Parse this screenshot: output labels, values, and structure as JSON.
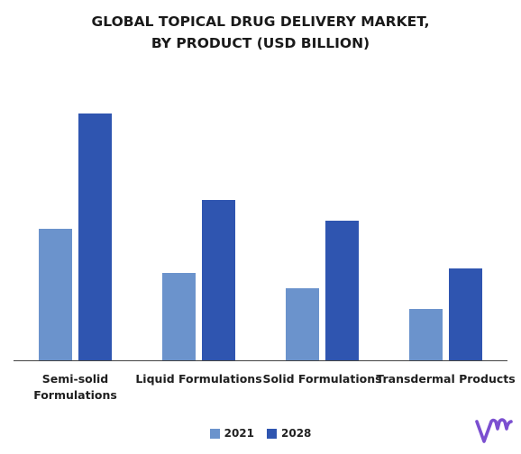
{
  "title_line1": "GLOBAL TOPICAL DRUG DELIVERY MARKET,",
  "title_line2": "BY PRODUCT (USD BILLION)",
  "colors": {
    "2021": "#6b93cc",
    "2028": "#2f55b0",
    "logo": "#7b4fd0",
    "axis": "#444444"
  },
  "logo_icon": "vmr-logo-icon",
  "chart_data": {
    "type": "bar",
    "title": "GLOBAL TOPICAL DRUG DELIVERY MARKET, BY PRODUCT (USD BILLION)",
    "categories": [
      [
        "Semi-solid",
        "Formulations"
      ],
      [
        "Liquid Formulations"
      ],
      [
        "Solid Formulations"
      ],
      [
        "Transdermal Products"
      ]
    ],
    "series": [
      {
        "name": "2021",
        "values": [
          146,
          97,
          80,
          57
        ]
      },
      {
        "name": "2028",
        "values": [
          274,
          178,
          155,
          102
        ]
      }
    ],
    "ylim": [
      0,
      300
    ],
    "y_axis_visible": false,
    "grid": false,
    "legend": "bottom-center"
  }
}
